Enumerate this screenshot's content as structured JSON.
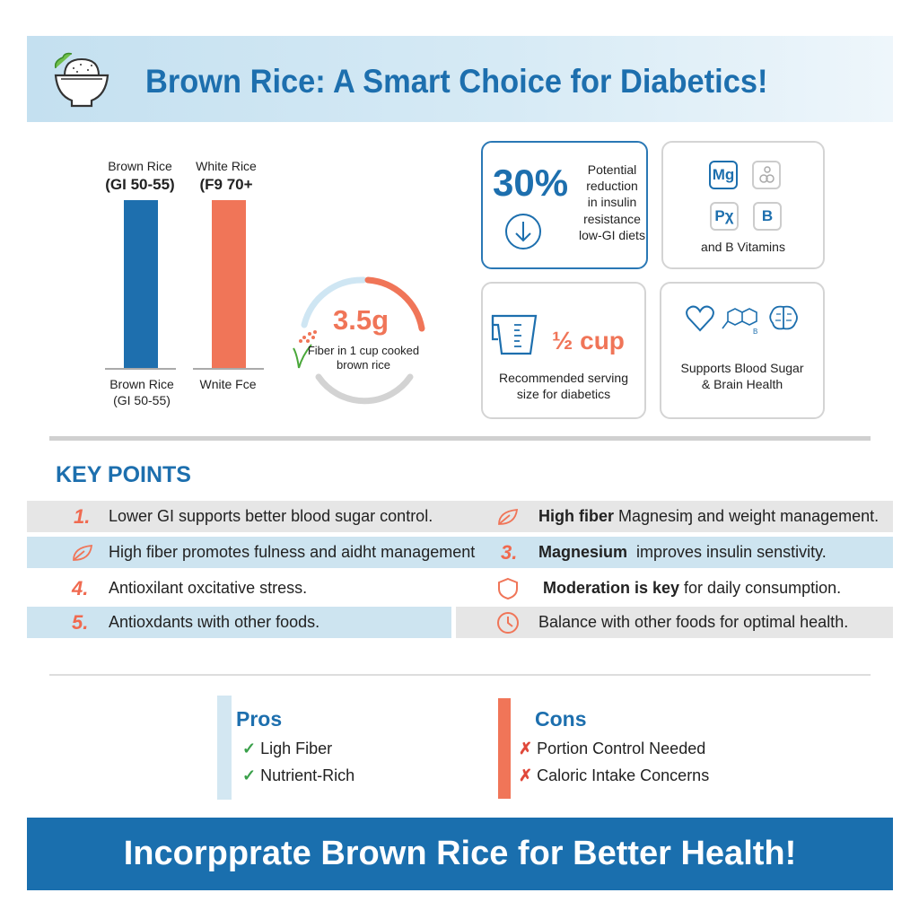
{
  "header": {
    "title": "Brown Rice: A Smart Choice for Diabetics!",
    "icon": "rice-bowl-icon"
  },
  "comparison": {
    "bars": [
      {
        "top_label_1": "Brown Rice",
        "top_label_2": "(GI 50-55)",
        "bottom_label_1": "Brown Rice",
        "bottom_label_2": "(GI 50-55)",
        "color": "#1e6fae"
      },
      {
        "top_label_1": "White Rice",
        "top_label_2": "(F9 70+",
        "bottom_label_1": "Wnite Fce",
        "bottom_label_2": "",
        "color": "#f07558"
      }
    ]
  },
  "fiber": {
    "value": "3.5g",
    "caption_1": "Fiber in 1 cup cooked",
    "caption_2": "brown rice"
  },
  "cards": {
    "insulin": {
      "value": "30%",
      "lines": [
        "Potential",
        "reduction",
        "in insulin",
        "resistance",
        "low-GI diets"
      ]
    },
    "vitamins": {
      "chips": [
        "Mg",
        "",
        "Pχ",
        "B"
      ],
      "caption": "and B Vitamins"
    },
    "serving": {
      "value": "½ cup",
      "caption_1": "Recommended serving",
      "caption_2": "size for diabetics"
    },
    "health": {
      "caption_1": "Supports Blood Sugar",
      "caption_2": "& Brain Health"
    }
  },
  "key_points": {
    "title": "KEY POINTS",
    "left": [
      {
        "marker": "1.",
        "text": "Lower GI supports better blood sugar control."
      },
      {
        "marker": "leaf-icon",
        "text": "High fiber promotes fulness and aidht management"
      },
      {
        "marker": "4.",
        "text": "Antioxilant oxcitative stress."
      },
      {
        "marker": "5.",
        "text": "Antioxdants ɩwith other foods."
      }
    ],
    "right": [
      {
        "marker": "leaf-icon",
        "bold": "High fiber",
        "text": " Magnesiɱ and weight management."
      },
      {
        "marker": "3.",
        "bold": "Magnesium",
        "text": "  improves insulin senstivity."
      },
      {
        "marker": "shield-icon",
        "bold": "Moderation is key",
        "text": " for daily consumption."
      },
      {
        "marker": "clock-icon",
        "bold": "",
        "text": "Balance with other foods for optimal health."
      }
    ]
  },
  "pros": {
    "title": "Pros",
    "items": [
      "Ligh Fiber",
      "Nutrient-Rich"
    ]
  },
  "cons": {
    "title": "Cons",
    "items": [
      "Portion Control Needed",
      "Caloric Intake Concerns"
    ]
  },
  "footer": {
    "text": "Incorpprate Brown Rice for Better Health!"
  },
  "colors": {
    "blue": "#1d6fae",
    "orange": "#f06a50",
    "light_blue": "#cde4f0"
  }
}
